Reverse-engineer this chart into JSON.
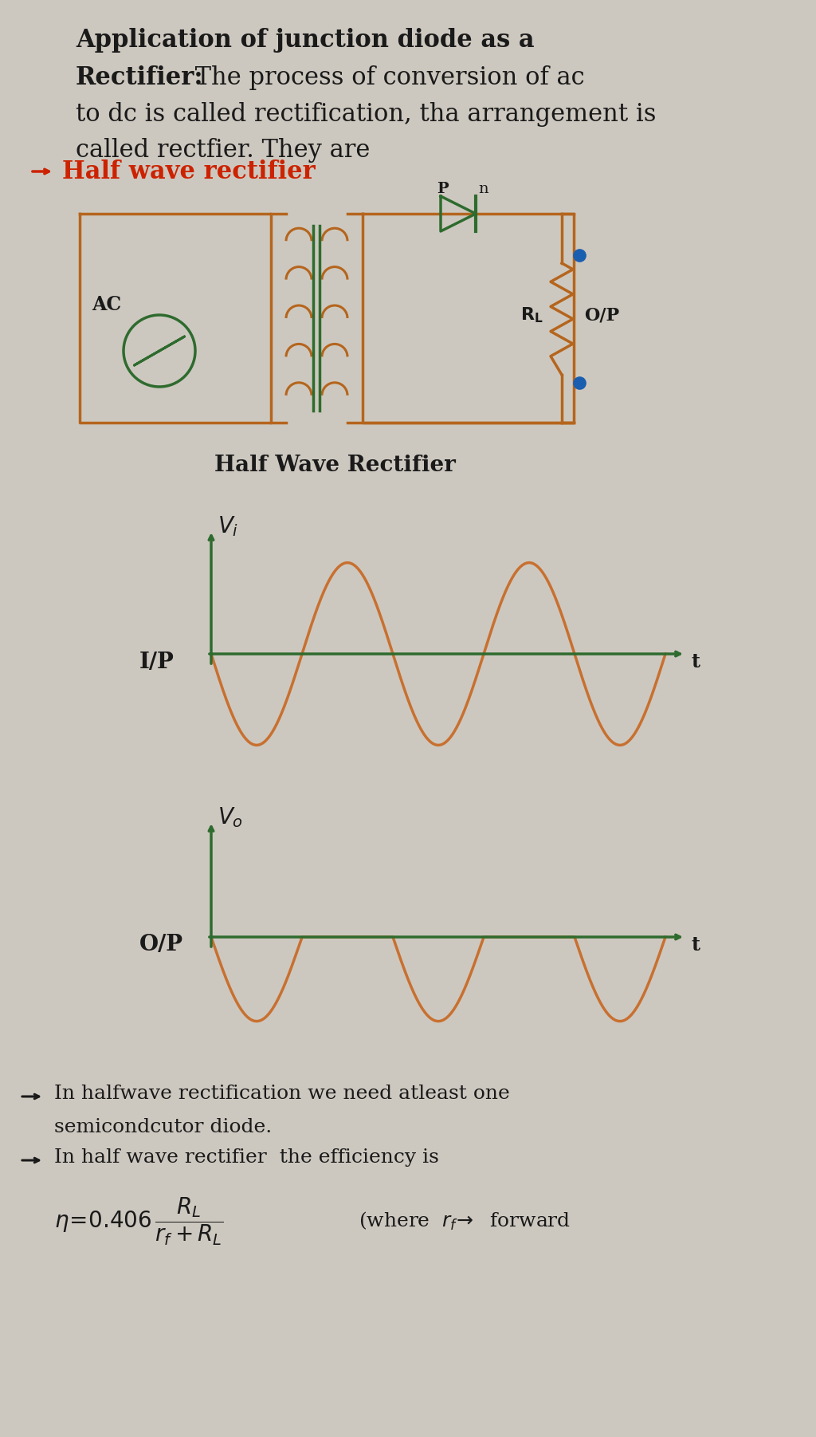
{
  "bg_color": "#cdc8bf",
  "title_line1": "Application of junction diode as a",
  "title_line2_bold": "Rectifier:",
  "title_line2_rest": " The process of conversion of ac",
  "title_line3": "to dc is called rectification, tha arrangement is",
  "title_line4": "called rectfier. They are",
  "bullet_label": "Half wave rectifier",
  "circuit_label": "Half Wave Rectifier",
  "circuit_color": "#b5651d",
  "green_color": "#2e6b2e",
  "wave_color": "#c87030",
  "text_color": "#1a1a1a",
  "red_color": "#cc2200",
  "blue_dot_color": "#1a5eb0",
  "formula_line1": "In halfwave rectification we need atleast one",
  "formula_line2": "semicondcutor diode.",
  "formula_line3": "In half wave rectifier  the efficiency is",
  "formula_where": "(where  r",
  "formula_where2": "f",
  "formula_where3": "→  forward"
}
